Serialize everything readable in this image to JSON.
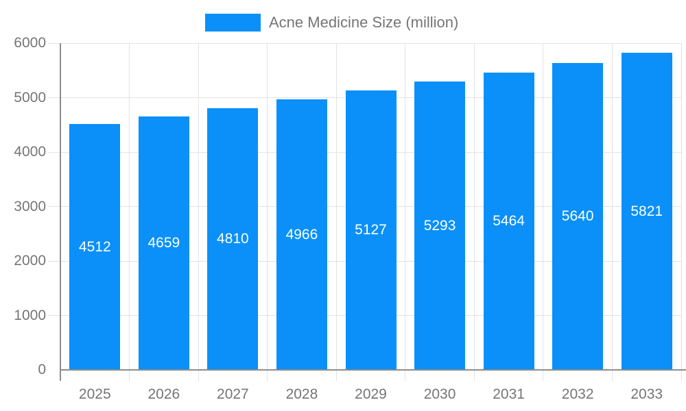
{
  "chart_data": {
    "type": "bar",
    "title": "Acne Medicine Size (million)",
    "legend": [
      "Acne Medicine Size (million)"
    ],
    "legend_position": "top",
    "categories": [
      "2025",
      "2026",
      "2027",
      "2028",
      "2029",
      "2030",
      "2031",
      "2032",
      "2033"
    ],
    "values": [
      4512,
      4659,
      4810,
      4966,
      5127,
      5293,
      5464,
      5640,
      5821
    ],
    "xlabel": "",
    "ylabel": "",
    "ylim": [
      0,
      6000
    ],
    "yticks": [
      0,
      1000,
      2000,
      3000,
      4000,
      5000,
      6000
    ],
    "grid": true,
    "value_labels_inside_bars": true,
    "colors": {
      "bar": "#0a90f8",
      "value_label": "#ffffff",
      "axis_text": "#757575",
      "axis_line": "#8c8c8c",
      "grid_line": "#e2e2e2",
      "background": "#ffffff"
    }
  }
}
